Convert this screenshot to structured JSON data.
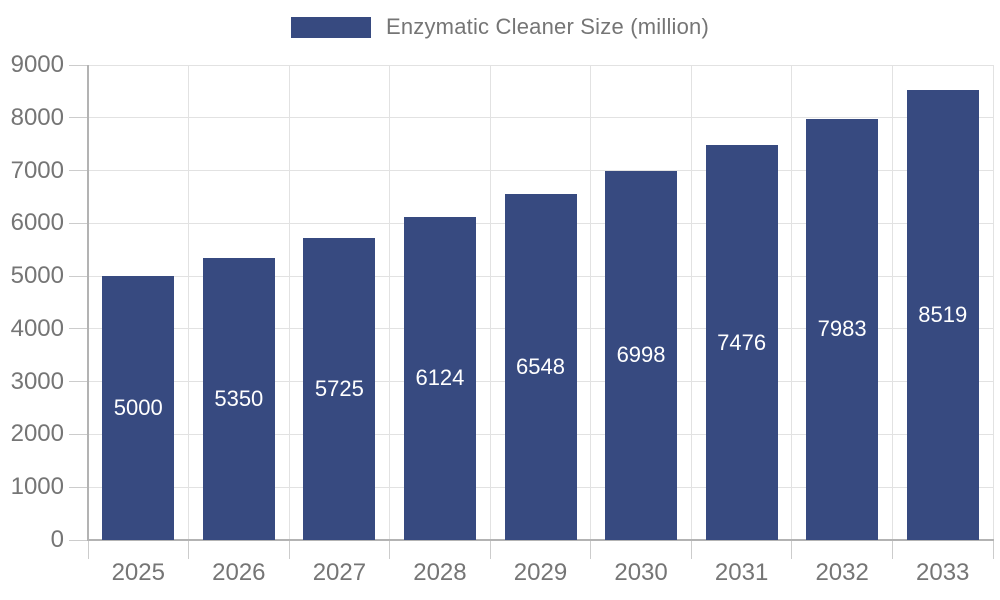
{
  "legend": {
    "label": "Enzymatic Cleaner Size (million)"
  },
  "colors": {
    "bar": "#374a80",
    "grid": "#e2e2e2",
    "axis": "#b3b3b3",
    "tick": "#cccccc",
    "tick_label": "#757575",
    "legend_text": "#757575",
    "value_label": "#ffffff",
    "background": "#ffffff"
  },
  "chart_data": {
    "type": "bar",
    "categories": [
      "2025",
      "2026",
      "2027",
      "2028",
      "2029",
      "2030",
      "2031",
      "2032",
      "2033"
    ],
    "values": [
      5000,
      5350,
      5725,
      6124,
      6548,
      6998,
      7476,
      7983,
      8519
    ],
    "title": "",
    "xlabel": "",
    "ylabel": "",
    "legend_entries": [
      "Enzymatic Cleaner Size (million)"
    ],
    "legend_position": "top-center",
    "ylim": [
      0,
      9000
    ],
    "ytick_interval": 1000,
    "grid": true,
    "bar_labels": "inside-middle-white"
  }
}
